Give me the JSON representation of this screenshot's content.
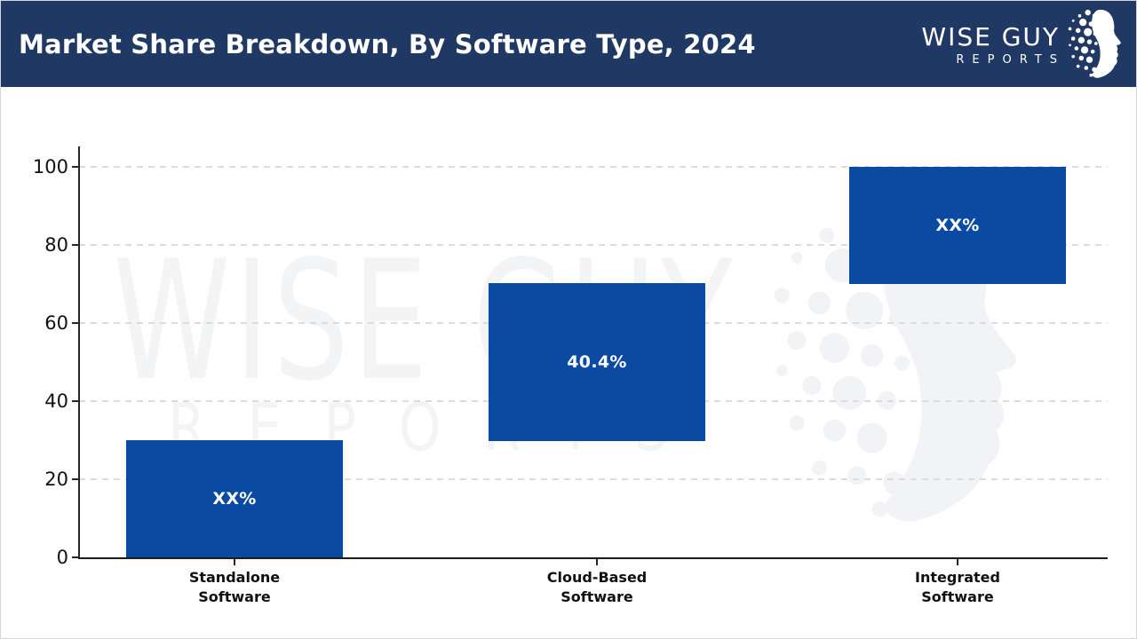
{
  "page": {
    "background": "#ffffff",
    "border_color": "#d6d6d6"
  },
  "header": {
    "background": "#203864",
    "title": "Market Share Breakdown, By Software Type, 2024",
    "logo": {
      "wordmark": "WISE GUY",
      "subtext": "REPORTS"
    }
  },
  "watermark": {
    "wordmark": "WISE GUY",
    "subtext": "REPORTS"
  },
  "chart_data": {
    "type": "bar",
    "variant": "floating-segment-waterfall",
    "title": "Market Share Breakdown, By Software Type, 2024",
    "categories": [
      "Standalone\nSoftware",
      "Cloud-Based\nSoftware",
      "Integrated\nSoftware"
    ],
    "segments": [
      {
        "category": "Standalone Software",
        "from": 0,
        "to": 30,
        "label": "XX%"
      },
      {
        "category": "Cloud-Based Software",
        "from": 29.8,
        "to": 70.2,
        "label": "40.4%"
      },
      {
        "category": "Integrated Software",
        "from": 70,
        "to": 100,
        "label": "XX%"
      }
    ],
    "xlabel": "",
    "ylabel": "",
    "ylim": [
      0,
      100
    ],
    "yticks": [
      0,
      20,
      40,
      60,
      80,
      100
    ],
    "grid": "horizontal-dashed",
    "legend": "none",
    "bar_color": "#0b4aa2",
    "bar_label_color": "#ffffff",
    "axis_color": "#262626",
    "gridline_color": "#dcdcdc"
  }
}
